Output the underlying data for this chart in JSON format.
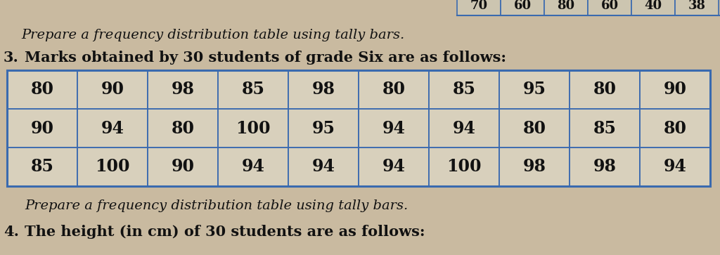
{
  "top_row_values": [
    "70",
    "60",
    "80",
    "60",
    "40",
    "38"
  ],
  "header_text": "Prepare a frequency distribution table using tally bars.",
  "question_number": "3.",
  "question_text": "Marks obtained by 30 students of grade Six are as follows:",
  "table_data": [
    [
      "80",
      "90",
      "98",
      "85",
      "98",
      "80",
      "85",
      "95",
      "80",
      "90"
    ],
    [
      "90",
      "94",
      "80",
      "100",
      "95",
      "94",
      "94",
      "80",
      "85",
      "80"
    ],
    [
      "85",
      "100",
      "90",
      "94",
      "94",
      "94",
      "100",
      "98",
      "98",
      "94"
    ]
  ],
  "footer_text": "Prepare a frequency distribution table using tally bars.",
  "footer_number": "4.",
  "footer_sub": "The height (in cm) of 30 students are as follows:",
  "bg_color": "#c9baa0",
  "cell_bg_light": "#d8d0bc",
  "cell_bg_top": "#ccc5b0",
  "border_color": "#3a6aaf",
  "text_color": "#111111",
  "text_color_dark": "#1a1a2e",
  "font_size_table": 17,
  "font_size_text": 14,
  "font_size_question": 15
}
